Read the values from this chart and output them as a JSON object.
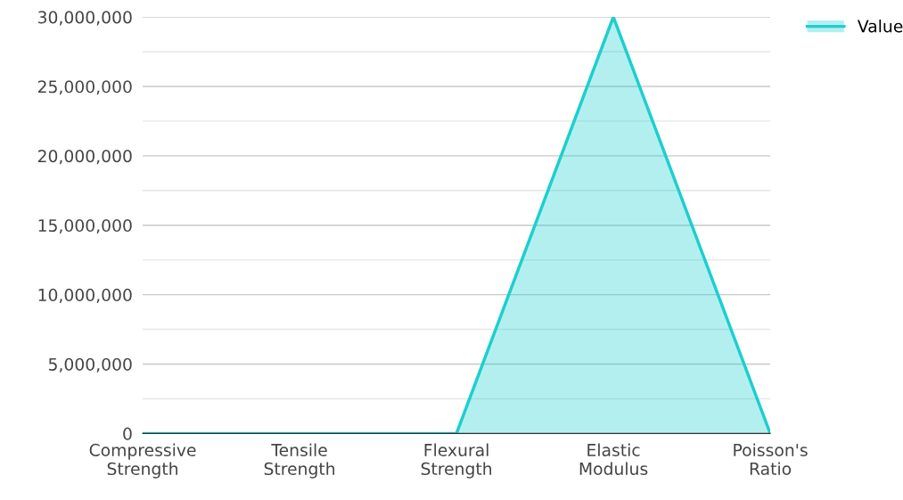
{
  "chart_data": {
    "type": "area",
    "categories": [
      "Compressive\nStrength",
      "Tensile\nStrength",
      "Flexural\nStrength",
      "Elastic\nModulus",
      "Poisson's\nRatio"
    ],
    "series": [
      {
        "name": "Value",
        "color": "#1ccfcf",
        "values": [
          0,
          0,
          0,
          30000000,
          0
        ]
      }
    ],
    "ylim": [
      0,
      30000000
    ],
    "yticks": [
      {
        "value": 0,
        "label": "0"
      },
      {
        "value": 2500000,
        "label": null
      },
      {
        "value": 5000000,
        "label": "5,000,000"
      },
      {
        "value": 7500000,
        "label": null
      },
      {
        "value": 10000000,
        "label": "10,000,000"
      },
      {
        "value": 12500000,
        "label": null
      },
      {
        "value": 15000000,
        "label": "15,000,000"
      },
      {
        "value": 17500000,
        "label": null
      },
      {
        "value": 20000000,
        "label": "20,000,000"
      },
      {
        "value": 22500000,
        "label": null
      },
      {
        "value": 25000000,
        "label": "25,000,000"
      },
      {
        "value": 27500000,
        "label": null
      },
      {
        "value": 30000000,
        "label": "30,000,000"
      }
    ],
    "grid": "y",
    "legend": "top right"
  }
}
